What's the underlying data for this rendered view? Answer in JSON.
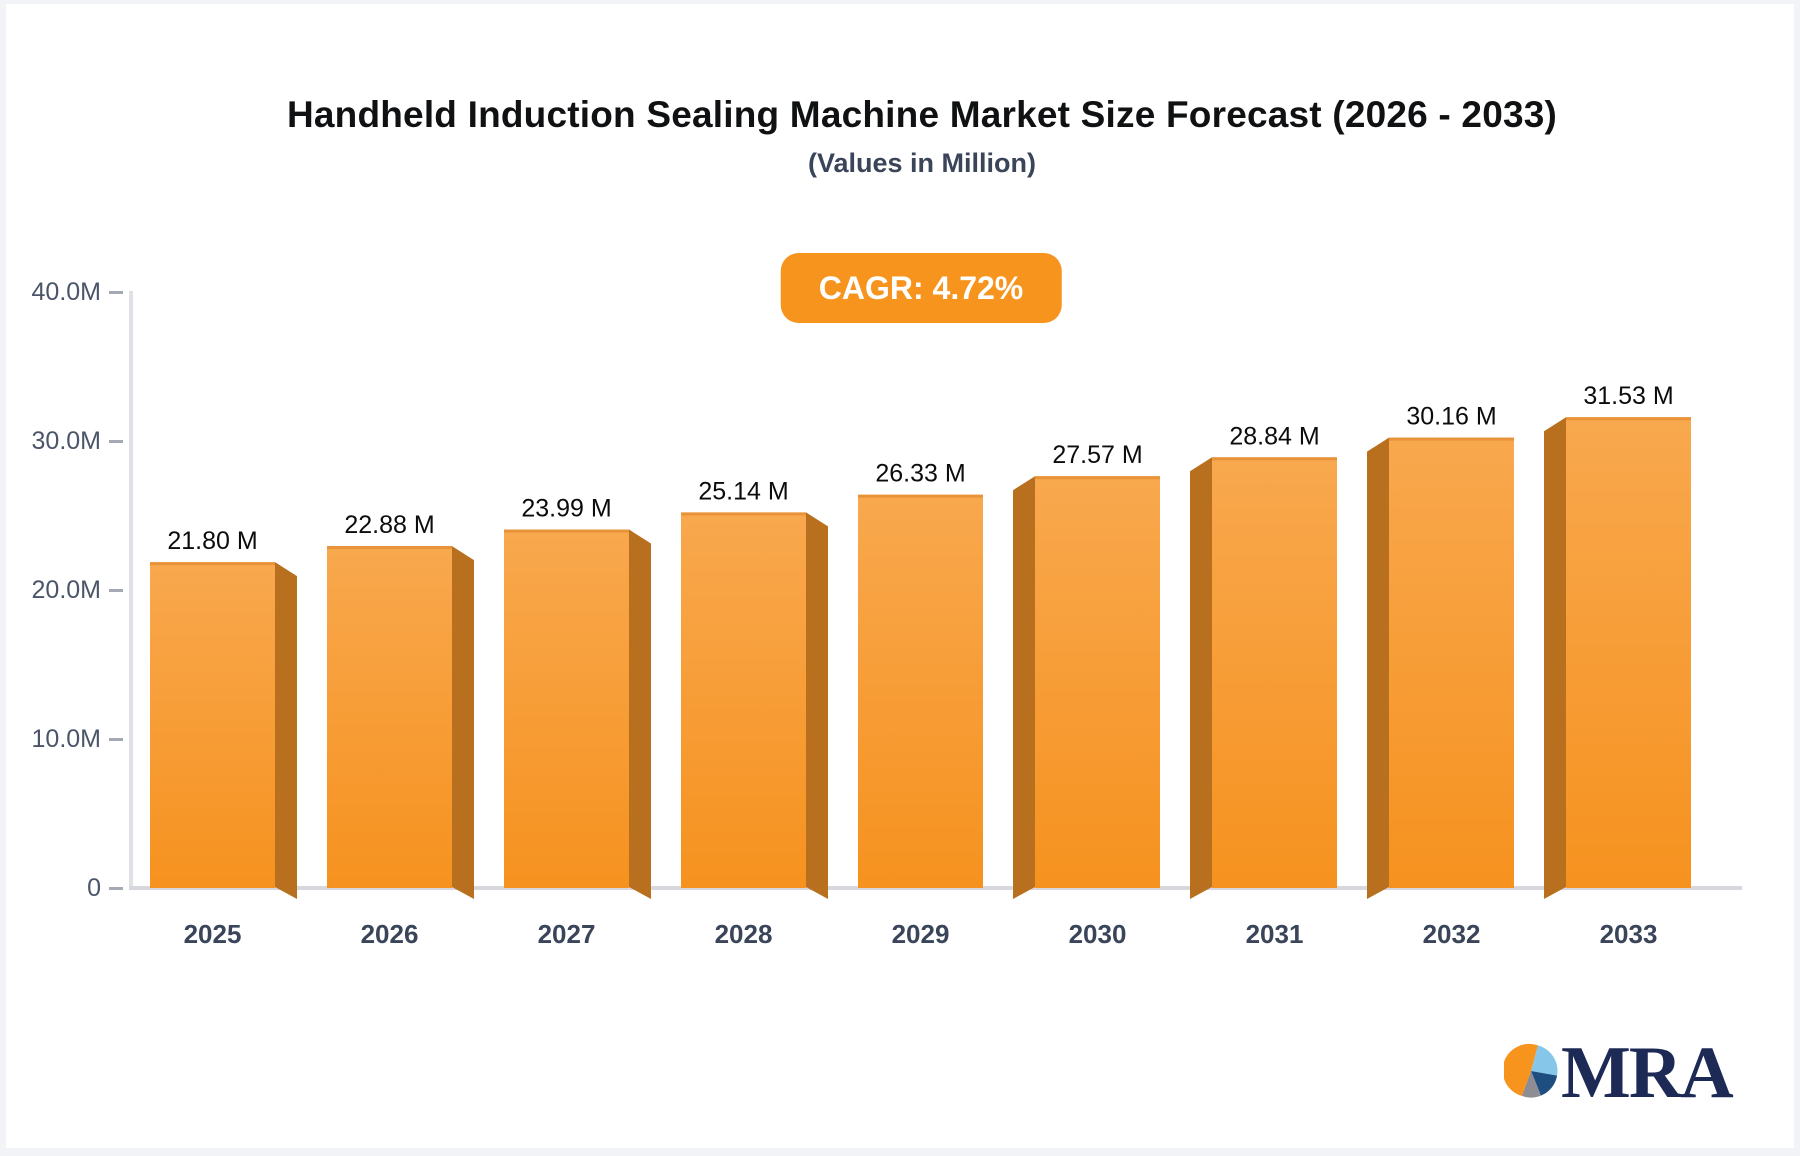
{
  "header": {
    "title": "Handheld Induction Sealing Machine Market Size Forecast (2026 - 2033)",
    "subtitle": "(Values in Million)",
    "badge_label": "CAGR: 4.72%",
    "badge_color": "#F7941E"
  },
  "chart_data": {
    "type": "bar",
    "title": "Handheld Induction Sealing Machine Market Size Forecast (2026 - 2033)",
    "subtitle": "(Values in Million)",
    "annotation": "CAGR: 4.72%",
    "categories": [
      "2025",
      "2026",
      "2027",
      "2028",
      "2029",
      "2030",
      "2031",
      "2032",
      "2033"
    ],
    "values": [
      21.8,
      22.88,
      23.99,
      25.14,
      26.33,
      27.57,
      28.84,
      30.16,
      31.53
    ],
    "value_labels": [
      "21.80 M",
      "22.88 M",
      "23.99 M",
      "25.14 M",
      "26.33 M",
      "27.57 M",
      "28.84 M",
      "30.16 M",
      "31.53 M"
    ],
    "xlabel": "",
    "ylabel": "",
    "ylim": [
      0,
      40
    ],
    "yticks": [
      {
        "value": 0,
        "label": "0"
      },
      {
        "value": 10,
        "label": "10.0M"
      },
      {
        "value": 20,
        "label": "20.0M"
      },
      {
        "value": 30,
        "label": "30.0M"
      },
      {
        "value": 40,
        "label": "40.0M"
      }
    ],
    "grid": false,
    "legend": false,
    "style": "3d-bars, perspective vanishing toward center column",
    "colors": {
      "bar_face_top": "#F8A84E",
      "bar_face_bottom": "#F6921F",
      "bar_side": "#B8701E",
      "bar_top_edge": "#E8923A",
      "axis_line": "#E0E1E6",
      "baseline": "#D7D8DD",
      "tick_dash": "#A5A9B4",
      "tick_label": "#4B5569",
      "category_label": "#3A455A",
      "value_label": "#0C0C0D"
    }
  },
  "logo": {
    "text": "MRA",
    "colors": {
      "text": "#1E2A56",
      "pie_orange": "#F7941E",
      "pie_lightblue": "#85C6E9",
      "pie_navy": "#1D4E7F",
      "pie_gray": "#8D8D93"
    }
  }
}
